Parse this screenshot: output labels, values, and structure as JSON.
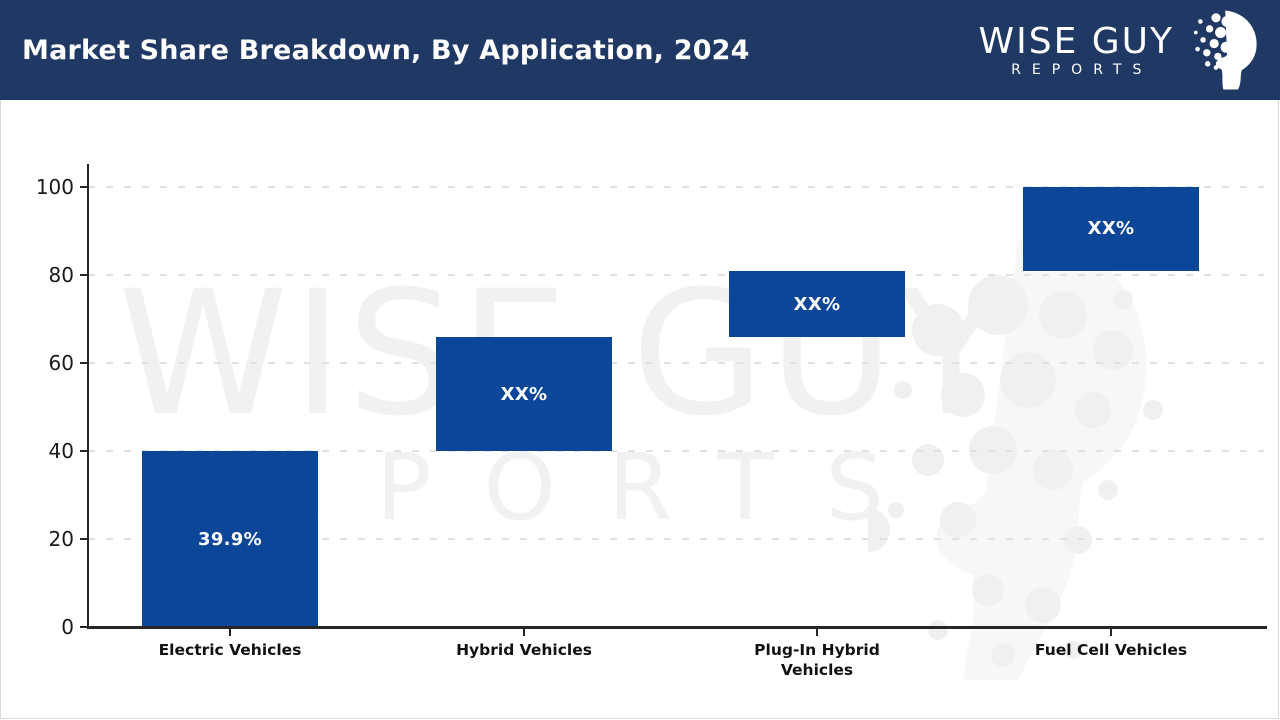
{
  "header": {
    "title": "Market Share Breakdown, By Application, 2024",
    "logo": {
      "name_top": "WISE GUY",
      "name_bottom": "REPORTS"
    }
  },
  "watermark": {
    "big": "WISE GUY",
    "small": "REPORTS"
  },
  "chart_data": {
    "type": "bar",
    "subtype": "floating-range-bars",
    "title": "Market Share Breakdown, By Application, 2024",
    "categories": [
      "Electric Vehicles",
      "Hybrid Vehicles",
      "Plug-In Hybrid Vehicles",
      "Fuel Cell Vehicles"
    ],
    "series": [
      {
        "name": "Market Share",
        "segments": [
          {
            "category": "Electric Vehicles",
            "start": 0,
            "end": 39.9,
            "label": "39.9%"
          },
          {
            "category": "Hybrid Vehicles",
            "start": 39.9,
            "end": 65.8,
            "label": "XX%"
          },
          {
            "category": "Plug-In Hybrid Vehicles",
            "start": 65.8,
            "end": 81.0,
            "label": "XX%"
          },
          {
            "category": "Fuel Cell Vehicles",
            "start": 81.0,
            "end": 100,
            "label": "XX%"
          }
        ]
      }
    ],
    "bar_color": "#0c4699",
    "ylim": [
      0,
      100
    ],
    "yticks": [
      0,
      20,
      40,
      60,
      80,
      100
    ],
    "xlabel": "",
    "ylabel": "",
    "grid": {
      "axis": "y",
      "style": "dashed",
      "color": "#e1e1e1"
    },
    "legend": null
  }
}
